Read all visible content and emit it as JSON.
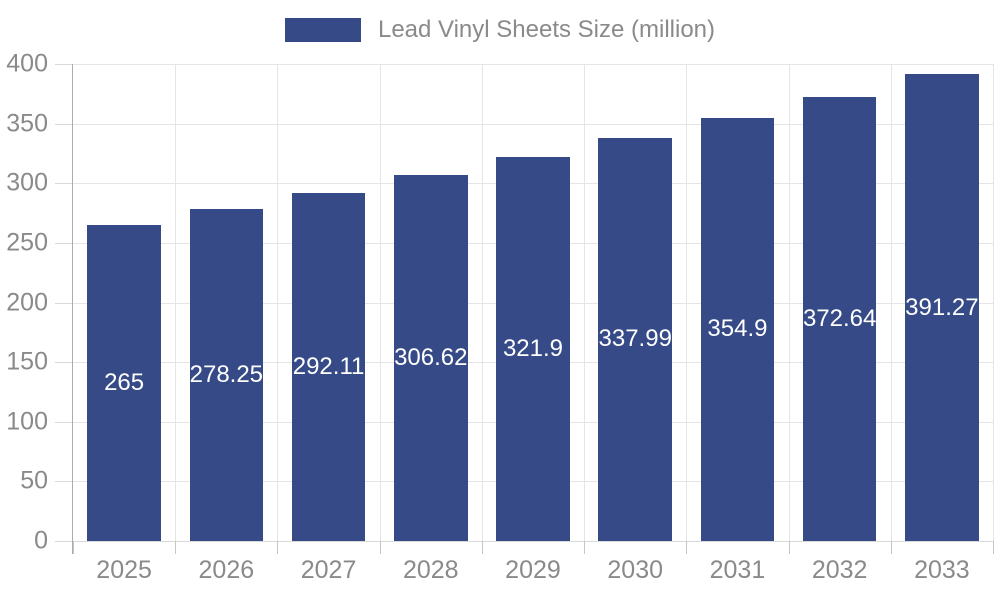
{
  "chart_data": {
    "type": "bar",
    "title": "Lead Vinyl Sheets Size (million)",
    "legend": {
      "label": "Lead Vinyl Sheets Size (million)",
      "position": "top"
    },
    "categories": [
      "2025",
      "2026",
      "2027",
      "2028",
      "2029",
      "2030",
      "2031",
      "2032",
      "2033"
    ],
    "series": [
      {
        "name": "Lead Vinyl Sheets Size (million)",
        "values": [
          265,
          278.25,
          292.11,
          306.62,
          321.9,
          337.99,
          354.9,
          372.64,
          391.27
        ]
      }
    ],
    "data_labels": [
      "265",
      "278.25",
      "292.11",
      "306.62",
      "321.9",
      "337.99",
      "354.9",
      "372.64",
      "391.27"
    ],
    "xlabel": "",
    "ylabel": "",
    "ylim": [
      0,
      400
    ],
    "yticks": [
      0,
      50,
      100,
      150,
      200,
      250,
      300,
      350,
      400
    ],
    "grid": true,
    "colors": {
      "bar": "#354a87",
      "data_label": "#ffffff",
      "axis_text": "#8a8a8a",
      "grid_line": "#e5e5e8",
      "axis_line": "#ababab",
      "tick_line": "#c6c6c6",
      "background": "#ffffff"
    }
  }
}
